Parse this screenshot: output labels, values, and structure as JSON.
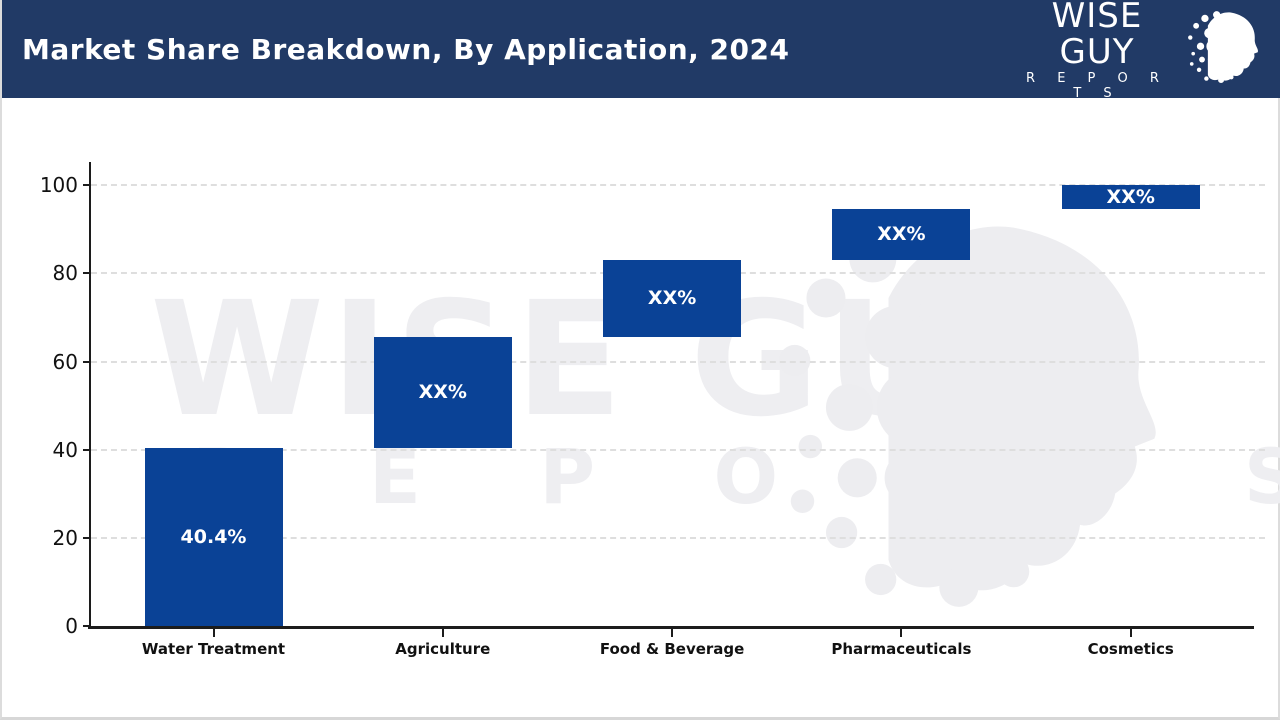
{
  "header": {
    "title": "Market Share Breakdown, By Application, 2024",
    "bg_color": "#213a66",
    "logo": {
      "line1": "WISE GUY",
      "line2": "R E P O R T S",
      "icon": "dotted-head-profile-icon"
    }
  },
  "watermark": {
    "line1": "WISE GUY",
    "line2": "R E P O R T S",
    "icon": "dotted-head-profile-icon"
  },
  "chart_data": {
    "type": "bar",
    "subtype": "waterfall",
    "title": "Market Share Breakdown, By Application, 2024",
    "categories": [
      "Water Treatment",
      "Agriculture",
      "Food & Beverage",
      "Pharmaceuticals",
      "Cosmetics"
    ],
    "segments": [
      {
        "category": "Water Treatment",
        "start": 0,
        "end": 40.4,
        "label": "40.4%"
      },
      {
        "category": "Agriculture",
        "start": 40.4,
        "end": 65.6,
        "label": "XX%"
      },
      {
        "category": "Food & Beverage",
        "start": 65.6,
        "end": 83.0,
        "label": "XX%"
      },
      {
        "category": "Pharmaceuticals",
        "start": 83.1,
        "end": 94.5,
        "label": "XX%"
      },
      {
        "category": "Cosmetics",
        "start": 94.6,
        "end": 100,
        "label": "XX%"
      }
    ],
    "yticks": [
      0,
      20,
      40,
      60,
      80,
      100
    ],
    "ylim": [
      0,
      105
    ],
    "xlabel": "",
    "ylabel": "",
    "bar_color": "#0a4296",
    "label_color": "#ffffff",
    "grid": true,
    "gridline_style": "dashed",
    "legend": "none"
  }
}
